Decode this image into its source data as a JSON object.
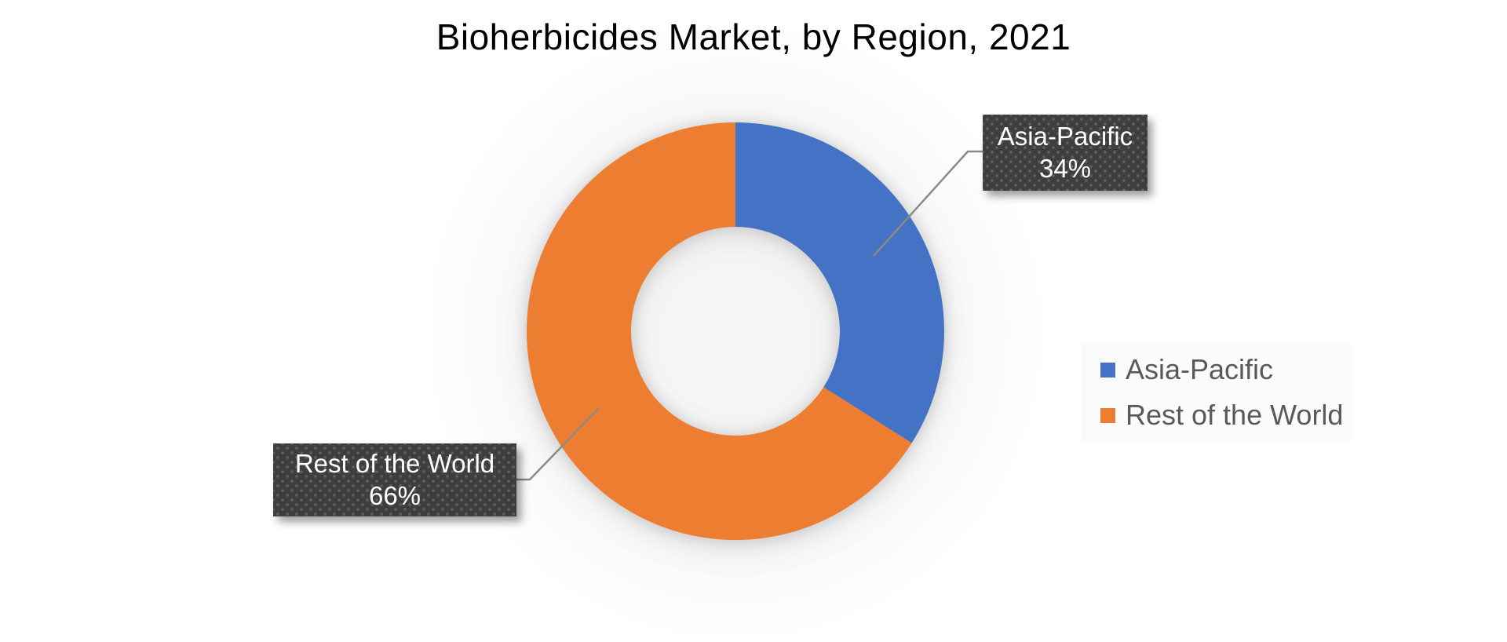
{
  "title": "Bioherbicides Market, by Region, 2021",
  "chart_data": {
    "type": "pie",
    "subtype": "donut",
    "title": "Bioherbicides Market, by Region, 2021",
    "categories": [
      "Asia-Pacific",
      "Rest of the World"
    ],
    "values": [
      34,
      66
    ],
    "unit": "percent",
    "colors": [
      "#4472C4",
      "#ED7D31"
    ],
    "start_angle_deg": 0,
    "direction": "clockwise",
    "donut_hole_ratio": 0.5,
    "legend_position": "right",
    "grid": false,
    "data_labels": [
      {
        "category": "Asia-Pacific",
        "text_line1": "Asia-Pacific",
        "text_line2": "34%"
      },
      {
        "category": "Rest of the World",
        "text_line1": "Rest of the World",
        "text_line2": "66%"
      }
    ]
  },
  "callouts": {
    "asia_pacific": {
      "line1": "Asia-Pacific",
      "line2": "34%"
    },
    "rest_of_world": {
      "line1": "Rest of the World",
      "line2": "66%"
    }
  },
  "legend": {
    "items": [
      {
        "label": "Asia-Pacific",
        "color": "#4472C4"
      },
      {
        "label": "Rest of the World",
        "color": "#ED7D31"
      }
    ]
  },
  "style": {
    "slice_asia_pacific": "#4472C4",
    "slice_rest_of_world": "#ED7D31",
    "callout_bg": "#3E3E3E",
    "callout_text": "#FFFFFF",
    "leader_line": "#8C8A84",
    "legend_text": "#595959",
    "legend_bg": "#FBFBFB",
    "title_color": "#000000"
  }
}
